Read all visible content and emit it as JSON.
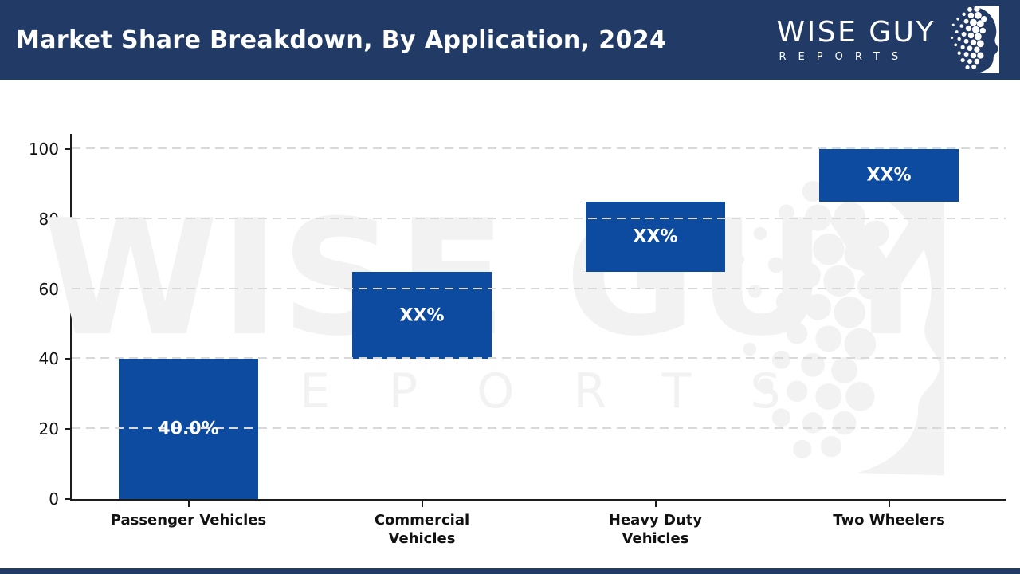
{
  "header": {
    "title": "Market Share Breakdown, By Application, 2024",
    "logo": {
      "line1": "WISE GUY",
      "line2": "REPORTS"
    }
  },
  "watermark": {
    "line1": "WISE GUY",
    "line2": "REPORTS"
  },
  "colors": {
    "header_bg": "#213a66",
    "footer_bg": "#213a66",
    "bar": "#0c4b9f",
    "bar_label": "#ffffff",
    "gridline": "#d9d9d9",
    "axis": "#1c1c1c",
    "watermark": "#f2f2f2",
    "title_text": "#ffffff"
  },
  "chart_data": {
    "type": "bar",
    "subtype": "waterfall",
    "title": "Market Share Breakdown, By Application, 2024",
    "categories": [
      "Passenger Vehicles",
      "Commercial\nVehicles",
      "Heavy Duty\nVehicles",
      "Two Wheelers"
    ],
    "series": [
      {
        "name": "Market Share (%)",
        "segments": [
          {
            "category": "Passenger Vehicles",
            "start": 0,
            "end": 40,
            "value": 40,
            "label": "40.0%"
          },
          {
            "category": "Commercial Vehicles",
            "start": 40,
            "end": 65,
            "value": 25,
            "label": "XX%"
          },
          {
            "category": "Heavy Duty Vehicles",
            "start": 65,
            "end": 85,
            "value": 20,
            "label": "XX%"
          },
          {
            "category": "Two Wheelers",
            "start": 85,
            "end": 100,
            "value": 15,
            "label": "XX%"
          }
        ]
      }
    ],
    "xlabel": "",
    "ylabel": "",
    "ylim": [
      0,
      100
    ],
    "yticks": [
      0,
      20,
      40,
      60,
      80,
      100
    ],
    "grid": "horizontal-dashed",
    "grid_over_bars": true,
    "legend": "none",
    "bar_color": "#0c4b9f",
    "bar_label_color": "#ffffff"
  }
}
